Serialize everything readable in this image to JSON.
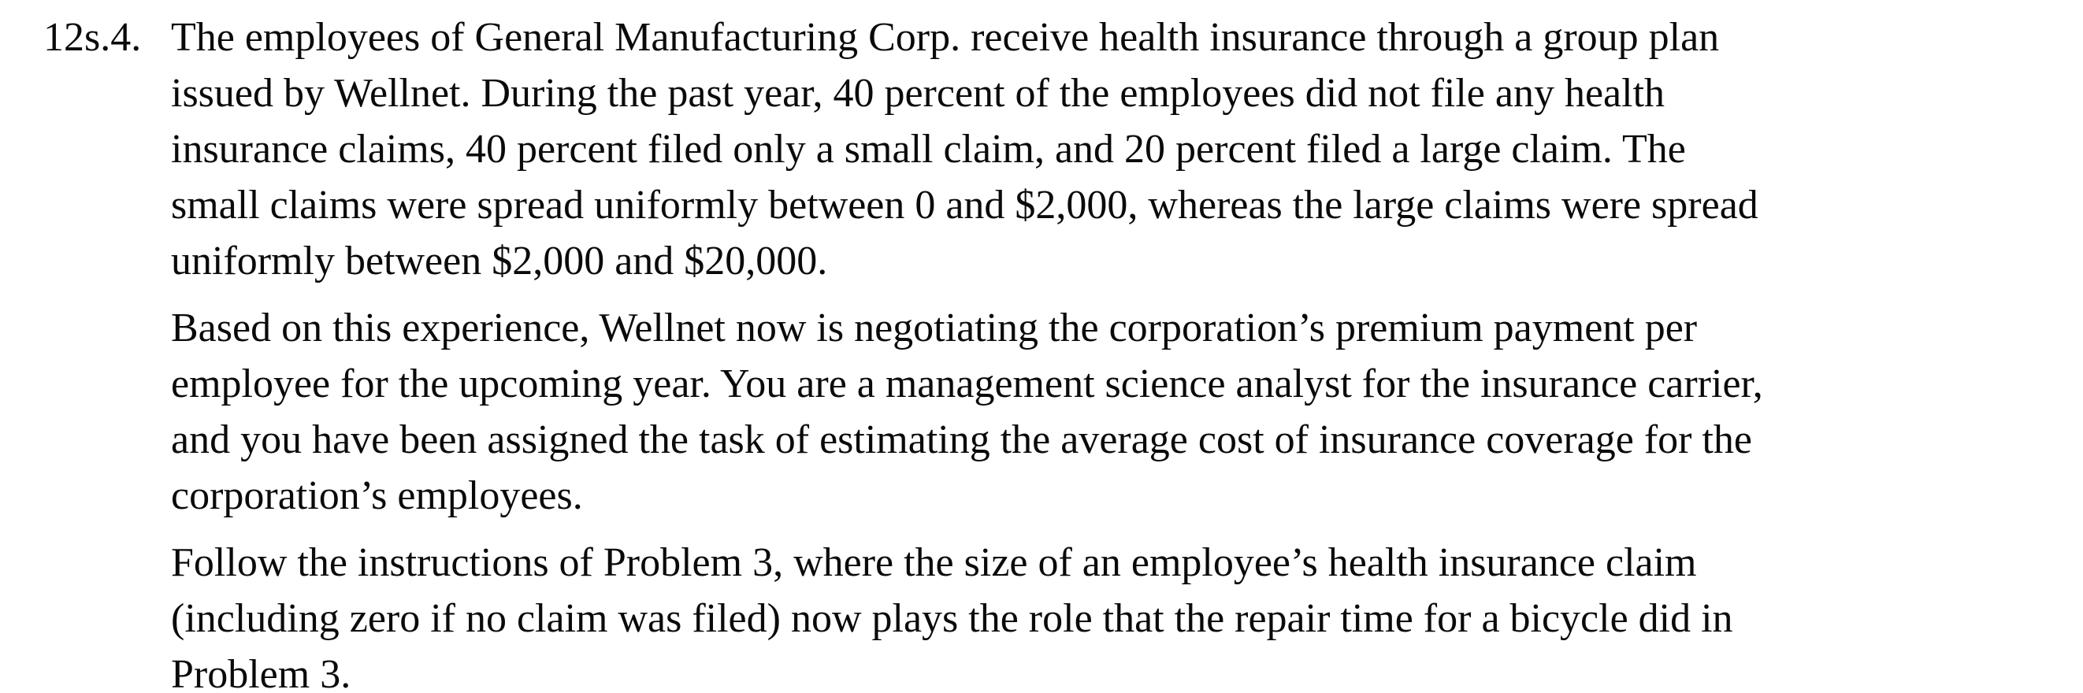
{
  "document": {
    "problem_number": "12s.4.",
    "paragraphs": [
      {
        "lines": [
          "The employees of General Manufacturing Corp. receive health insurance through a group plan",
          "issued by Wellnet. During the past year, 40 percent of the employees did not file any health",
          "insurance claims, 40 percent filed only a small claim, and 20 percent filed a large claim. The",
          "small claims were spread uniformly between 0 and $2,000, whereas the large claims were spread",
          "uniformly between $2,000 and $20,000."
        ]
      },
      {
        "lines": [
          "Based on this experience, Wellnet now is negotiating the corporation’s premium payment per",
          "employee for the upcoming year. You are a management science analyst for the insurance carrier,",
          "and you have been assigned the task of estimating the average cost of insurance coverage for the",
          "corporation’s employees."
        ]
      },
      {
        "lines": [
          "Follow the instructions of Problem 3, where the size of an employee’s health insurance claim",
          "(including zero if no claim was filed) now plays the role that the repair time for a bicycle did in",
          "Problem 3."
        ]
      }
    ],
    "colors": {
      "text": "#0a0a0a",
      "background": "#ffffff"
    }
  }
}
